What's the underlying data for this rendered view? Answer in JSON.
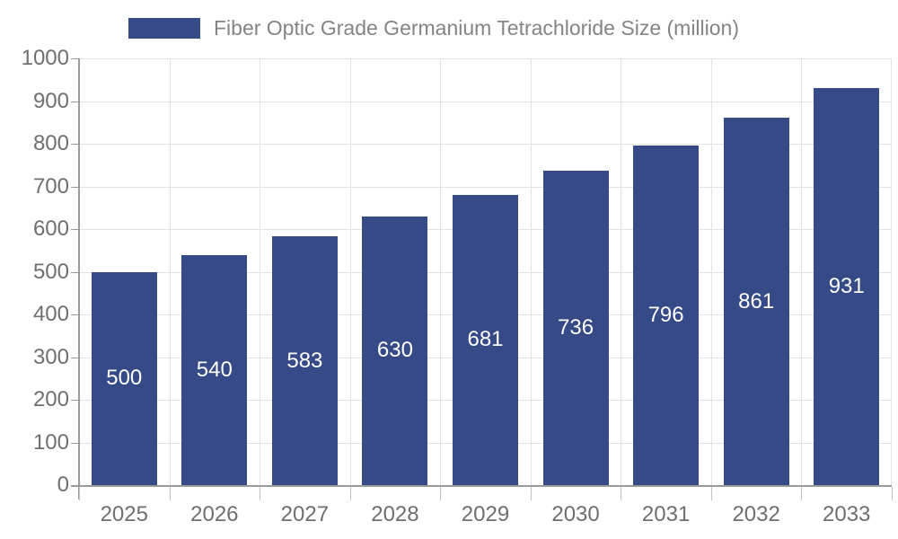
{
  "legend": {
    "label": "Fiber Optic Grade Germanium Tetrachloride Size (million)"
  },
  "chart_data": {
    "type": "bar",
    "title": "Fiber Optic Grade Germanium Tetrachloride Size (million)",
    "categories": [
      "2025",
      "2026",
      "2027",
      "2028",
      "2029",
      "2030",
      "2031",
      "2032",
      "2033"
    ],
    "values": [
      500,
      540,
      583,
      630,
      681,
      736,
      796,
      861,
      931
    ],
    "bar_value_labels": [
      "500",
      "540",
      "583",
      "630",
      "681",
      "736",
      "796",
      "861",
      "931"
    ],
    "xlabel": "",
    "ylabel": "",
    "ylim": [
      0,
      1000
    ],
    "yticks": [
      0,
      100,
      200,
      300,
      400,
      500,
      600,
      700,
      800,
      900,
      1000
    ],
    "grid": true,
    "legend_position": "top"
  },
  "colors": {
    "bar": "#354a87",
    "bar_value_label": "#ffffff",
    "legend_text": "#848484",
    "axis_label": "#6f6f6f",
    "axis_line": "#9a9a9a",
    "boundary_tick": "#c0c0c0",
    "gridline": "#e2e2e2",
    "background": "#ffffff"
  }
}
